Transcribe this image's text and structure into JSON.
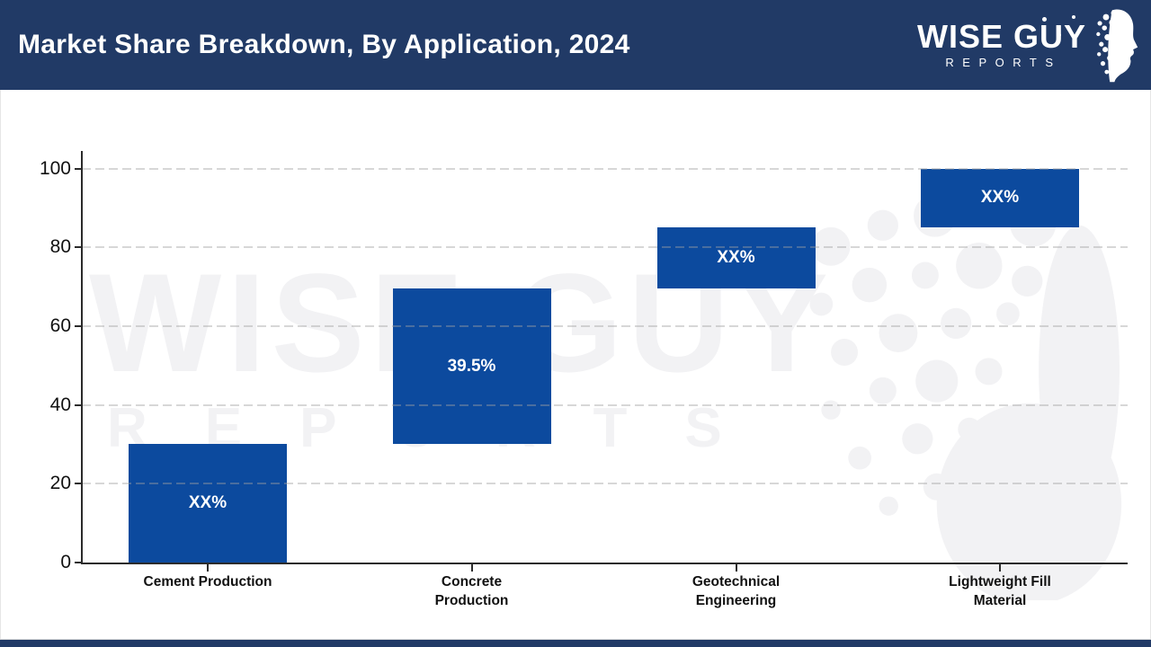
{
  "header": {
    "title": "Market Share Breakdown, By Application, 2024"
  },
  "logo": {
    "wordmark": "WISE GUY",
    "subtext": "REPORTS"
  },
  "watermark": {
    "wordmark": "WISE GUY",
    "subtext": "REPORTS"
  },
  "colors": {
    "header_bg": "#213A66",
    "bar": "#0C4A9E",
    "grid": "#d9d9d9",
    "axis": "#2b2b2b",
    "watermark": "#F2F2F4"
  },
  "chart_data": {
    "type": "bar",
    "subtype": "waterfall",
    "title": "Market Share Breakdown, By Application, 2024",
    "categories": [
      "Cement Production",
      "Concrete\nProduction",
      "Geotechnical\nEngineering",
      "Lightweight Fill\nMaterial"
    ],
    "segments": [
      {
        "category": "Cement Production",
        "start": 0,
        "end": 30,
        "label": "XX%"
      },
      {
        "category": "Concrete Production",
        "start": 30,
        "end": 69.5,
        "label": "39.5%"
      },
      {
        "category": "Geotechnical Engineering",
        "start": 69.5,
        "end": 85,
        "label": "XX%"
      },
      {
        "category": "Lightweight Fill Material",
        "start": 85,
        "end": 100,
        "label": "XX%"
      }
    ],
    "values": [
      30,
      39.5,
      15.5,
      15
    ],
    "value_labels": [
      "XX%",
      "39.5%",
      "XX%",
      "XX%"
    ],
    "yticks": [
      0,
      20,
      40,
      60,
      80,
      100
    ],
    "ylim": [
      0,
      100
    ],
    "xlabel": "",
    "ylabel": "",
    "grid": "horizontal-dashed",
    "legend": "none"
  }
}
